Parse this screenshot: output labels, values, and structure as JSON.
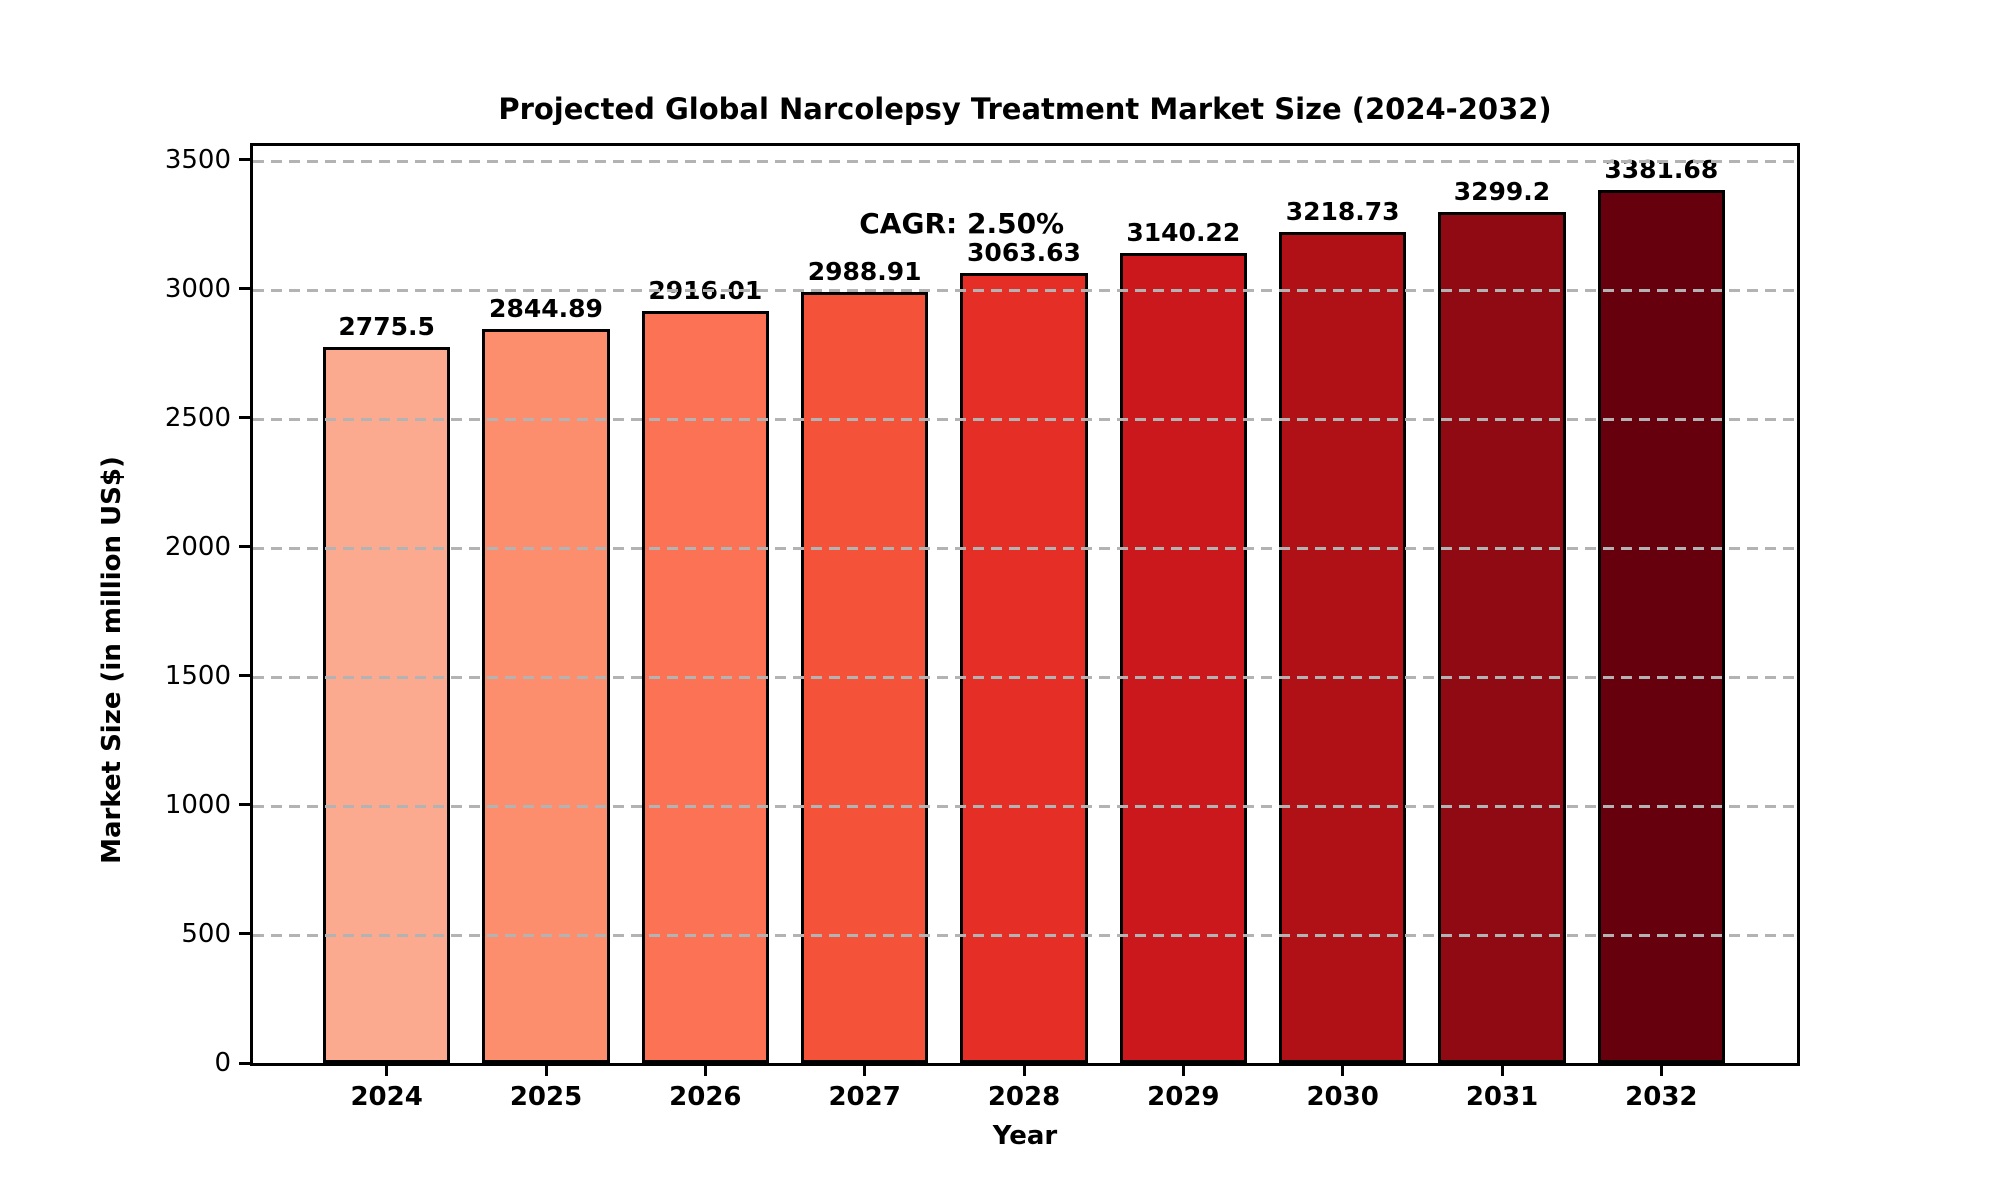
{
  "chart_data": {
    "type": "bar",
    "title": "Projected Global Narcolepsy Treatment Market Size (2024-2032)",
    "xlabel": "Year",
    "ylabel": "Market Size (in million US$)",
    "annotation": "CAGR: 2.50%",
    "categories": [
      "2024",
      "2025",
      "2026",
      "2027",
      "2028",
      "2029",
      "2030",
      "2031",
      "2032"
    ],
    "values": [
      2775.5,
      2844.89,
      2916.01,
      2988.91,
      3063.63,
      3140.22,
      3218.73,
      3299.2,
      3381.68
    ],
    "value_labels": [
      "2775.5",
      "2844.89",
      "2916.01",
      "2988.91",
      "3063.63",
      "3140.22",
      "3218.73",
      "3299.2",
      "3381.68"
    ],
    "bar_colors": [
      "#fcaa8f",
      "#fc8e6e",
      "#fb7254",
      "#f5523a",
      "#e52e26",
      "#cb181d",
      "#af1116",
      "#8f0a12",
      "#67000d"
    ],
    "bar_edge_color": "#000000",
    "yticks": [
      0,
      500,
      1000,
      1500,
      2000,
      2500,
      3000,
      3500
    ],
    "ylim": [
      0,
      3500
    ],
    "grid": {
      "axis": "y",
      "style": "dashed",
      "color": "#b3b3b3"
    },
    "legend": null,
    "background_color": "#ffffff",
    "spine_color": "#000000"
  }
}
